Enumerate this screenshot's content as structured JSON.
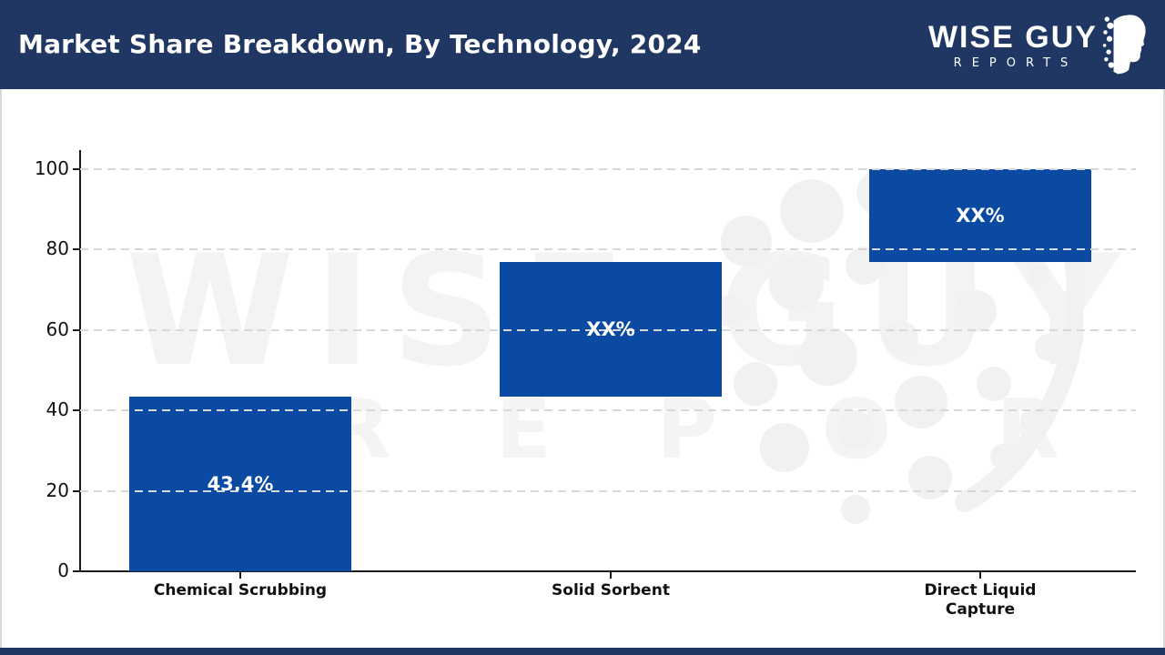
{
  "header": {
    "title": "Market Share Breakdown, By Technology, 2024",
    "logo": {
      "name_top": "WISE GUY",
      "name_bottom": "REPORTS"
    }
  },
  "watermark": {
    "line1": "WISE GUY",
    "line2": "R E P O R T S"
  },
  "colors": {
    "header_bg": "#203764",
    "footer_bg": "#203764",
    "bar_fill": "#0b4aa2",
    "grid": "#d8d8d8",
    "axis": "#1a1a1a",
    "bar_label_text": "#ffffff",
    "tick_label_text": "#111111",
    "watermark_text": "#f3f3f3"
  },
  "chart_data": {
    "type": "bar",
    "variant": "breakdown with floating stacked segments (waterfall-style)",
    "title": "Market Share Breakdown, By Technology, 2024",
    "categories": [
      "Chemical Scrubbing",
      "Solid Sorbent",
      "Direct Liquid Capture"
    ],
    "series": [
      {
        "name": "Market share (%)",
        "segments": [
          {
            "category": "Chemical Scrubbing",
            "start": 0,
            "end": 43.4,
            "value": 43.4,
            "label": "43.4%"
          },
          {
            "category": "Solid Sorbent",
            "start": 43.4,
            "end": 76.9,
            "value": 33.5,
            "label": "XX%"
          },
          {
            "category": "Direct Liquid Capture",
            "start": 76.9,
            "end": 100,
            "value": 23.1,
            "label": "XX%"
          }
        ]
      }
    ],
    "xlabel": "",
    "ylabel": "",
    "ylim": [
      0,
      100
    ],
    "yticks": [
      0,
      20,
      40,
      60,
      80,
      100
    ],
    "grid": "horizontal dashed gridlines drawn above bars",
    "legend": "none"
  }
}
